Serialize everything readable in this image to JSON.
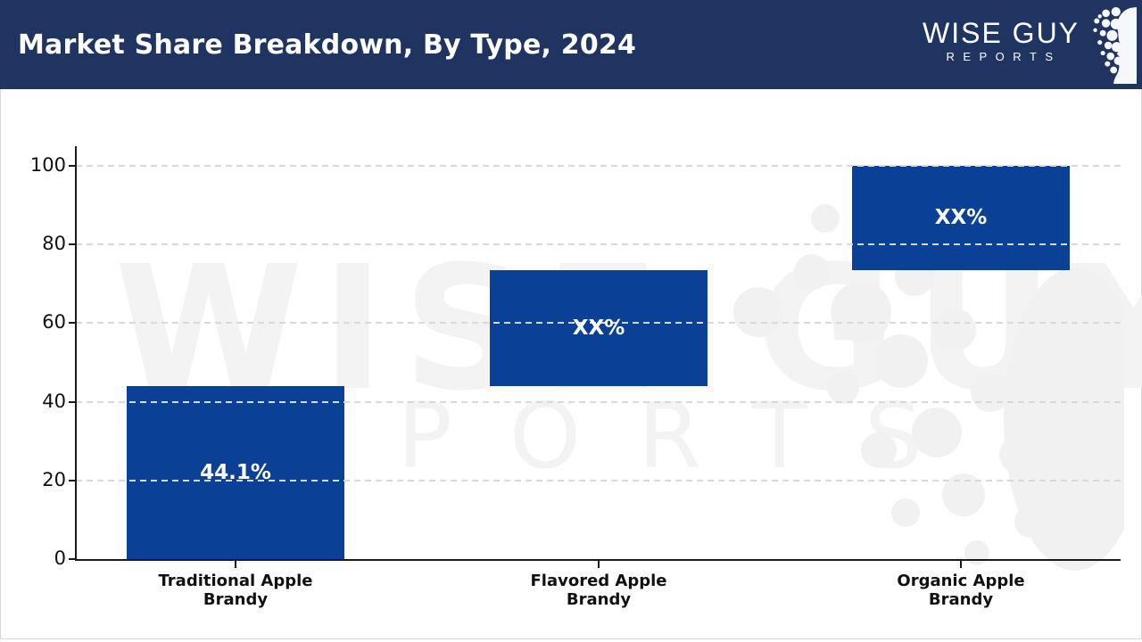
{
  "header": {
    "title": "Market Share Breakdown, By Type, 2024",
    "bg_color": "#203462",
    "text_color": "#ffffff",
    "brand": {
      "line1": "WISE GUY",
      "line2": "REPORTS"
    }
  },
  "watermark": {
    "line1": "WISE GUY",
    "line2": "REPORTS",
    "color": "#f3f3f3"
  },
  "chart_data": {
    "type": "bar",
    "subtype": "floating-waterfall",
    "title": "Market Share Breakdown, By Type, 2024",
    "categories": [
      "Traditional Apple\nBrandy",
      "Flavored Apple\nBrandy",
      "Organic Apple\nBrandy"
    ],
    "segments": [
      {
        "category": "Traditional Apple Brandy",
        "start": 0,
        "end": 44.1,
        "label": "44.1%"
      },
      {
        "category": "Flavored Apple Brandy",
        "start": 44.1,
        "end": 73.5,
        "label": "XX%"
      },
      {
        "category": "Organic Apple Brandy",
        "start": 73.5,
        "end": 100,
        "label": "XX%"
      }
    ],
    "yticks": [
      0,
      20,
      40,
      60,
      80,
      100
    ],
    "ylim": [
      0,
      100
    ],
    "xlabel": "",
    "ylabel": "",
    "bar_color": "#0a4197",
    "grid": "dashed horizontal",
    "legend": "none"
  }
}
